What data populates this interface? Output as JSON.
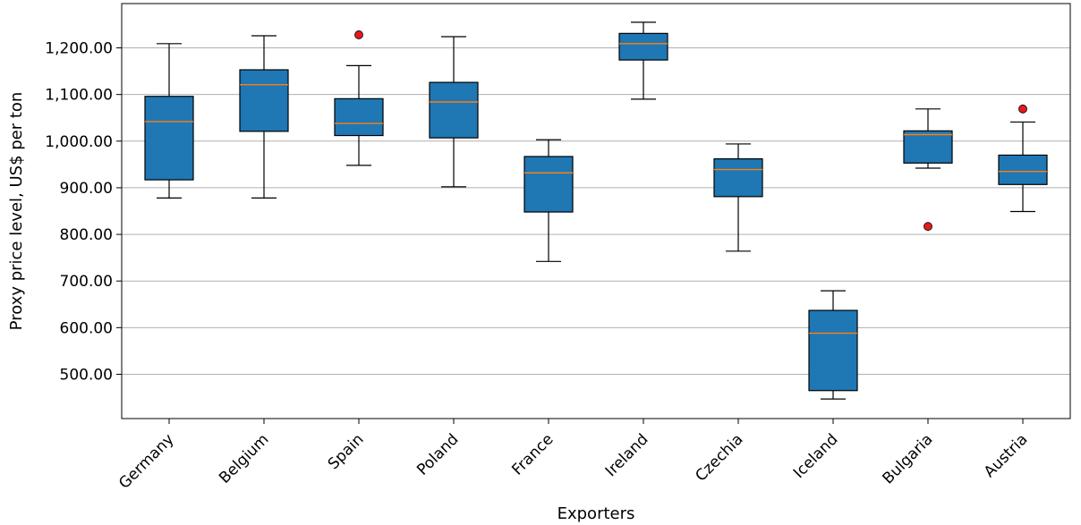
{
  "chart_data": {
    "type": "boxplot",
    "xlabel": "Exporters",
    "ylabel": "Proxy price level, US$ per ton",
    "ylim": [
      405,
      1295
    ],
    "yticks": [
      500,
      600,
      700,
      800,
      900,
      1000,
      1100,
      1200
    ],
    "ytick_labels": [
      "500.00",
      "600.00",
      "700.00",
      "800.00",
      "900.00",
      "1,000.00",
      "1,100.00",
      "1,200.00"
    ],
    "grid": "horizontal",
    "categories": [
      "Germany",
      "Belgium",
      "Spain",
      "Poland",
      "France",
      "Ireland",
      "Czechia",
      "Iceland",
      "Bulgaria",
      "Austria"
    ],
    "boxes": [
      {
        "category": "Germany",
        "whisker_low": 878,
        "q1": 917,
        "median": 1042,
        "q3": 1096,
        "whisker_high": 1209,
        "outliers": []
      },
      {
        "category": "Belgium",
        "whisker_low": 878,
        "q1": 1021,
        "median": 1121,
        "q3": 1153,
        "whisker_high": 1226,
        "outliers": []
      },
      {
        "category": "Spain",
        "whisker_low": 948,
        "q1": 1012,
        "median": 1038,
        "q3": 1091,
        "whisker_high": 1162,
        "outliers": [
          1228
        ]
      },
      {
        "category": "Poland",
        "whisker_low": 902,
        "q1": 1007,
        "median": 1084,
        "q3": 1126,
        "whisker_high": 1224,
        "outliers": []
      },
      {
        "category": "France",
        "whisker_low": 742,
        "q1": 848,
        "median": 932,
        "q3": 967,
        "whisker_high": 1003,
        "outliers": []
      },
      {
        "category": "Ireland",
        "whisker_low": 1090,
        "q1": 1174,
        "median": 1209,
        "q3": 1231,
        "whisker_high": 1255,
        "outliers": []
      },
      {
        "category": "Czechia",
        "whisker_low": 764,
        "q1": 881,
        "median": 939,
        "q3": 962,
        "whisker_high": 994,
        "outliers": []
      },
      {
        "category": "Iceland",
        "whisker_low": 447,
        "q1": 465,
        "median": 588,
        "q3": 637,
        "whisker_high": 679,
        "outliers": []
      },
      {
        "category": "Bulgaria",
        "whisker_low": 942,
        "q1": 953,
        "median": 1014,
        "q3": 1022,
        "whisker_high": 1069,
        "outliers": [
          817
        ]
      },
      {
        "category": "Austria",
        "whisker_low": 849,
        "q1": 907,
        "median": 935,
        "q3": 970,
        "whisker_high": 1041,
        "outliers": [
          1069
        ]
      }
    ],
    "colors": {
      "box_fill": "#1f77b4",
      "median": "#ff7f0e",
      "outlier": "#e41a1c",
      "grid": "#b0b0b0",
      "line": "#000000"
    }
  }
}
